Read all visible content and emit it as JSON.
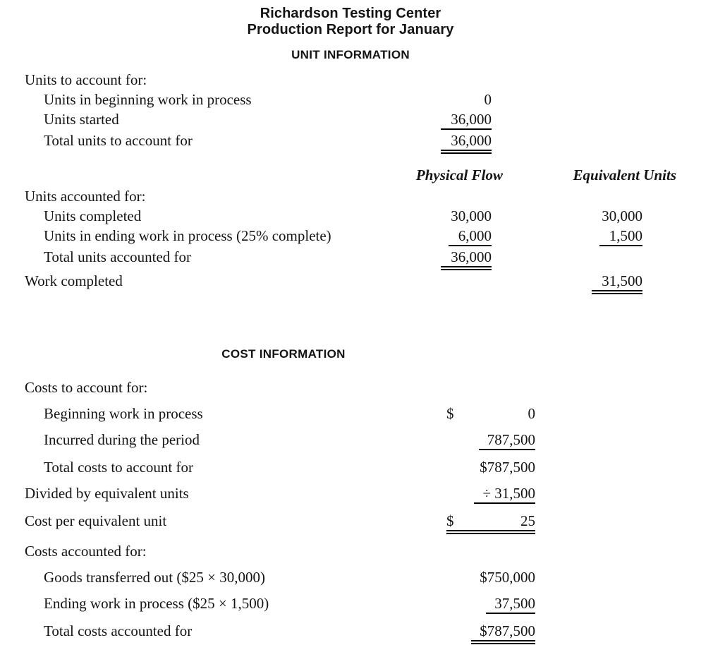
{
  "report": {
    "title": "Richardson Testing Center",
    "subtitle": "Production Report for January"
  },
  "unit_section": {
    "heading": "UNIT INFORMATION",
    "col_headers": {
      "physical_flow": "Physical Flow",
      "equivalent_units": "Equivalent Units"
    },
    "rows_top": [
      {
        "label": "Units to account for:",
        "indent": 0
      },
      {
        "label": "Units in beginning work in process",
        "indent": 1,
        "pf": "0"
      },
      {
        "label": "Units started",
        "indent": 1,
        "pf": "36,000",
        "pf_underline": "single"
      },
      {
        "label": "Total units to account for",
        "indent": 1,
        "pf": "36,000",
        "pf_underline": "double"
      }
    ],
    "rows_bottom": [
      {
        "label": "Units accounted for:",
        "indent": 0
      },
      {
        "label": "Units completed",
        "indent": 1,
        "pf": "30,000",
        "eu": "30,000"
      },
      {
        "label": "Units in ending work in process (25% complete)",
        "indent": 1,
        "pf": "6,000",
        "pf_underline": "single",
        "eu": "1,500",
        "eu_underline": "single"
      },
      {
        "label": "Total units accounted for",
        "indent": 1,
        "pf": "36,000",
        "pf_underline": "double"
      },
      {
        "label": "Work completed",
        "indent": 0,
        "eu": "31,500",
        "eu_underline": "double"
      }
    ]
  },
  "cost_section": {
    "heading": "COST INFORMATION",
    "rows": [
      {
        "label": "Costs to account for:",
        "indent": 0
      },
      {
        "label": "Beginning work in process",
        "indent": 1,
        "prefix": "$",
        "value": "0"
      },
      {
        "label": "Incurred during the period",
        "indent": 1,
        "value": "787,500",
        "underline": "single"
      },
      {
        "label": "Total costs to account for",
        "indent": 1,
        "value": "$787,500"
      },
      {
        "label": "Divided by equivalent units",
        "indent": 0,
        "value": "÷ 31,500",
        "underline": "single"
      },
      {
        "label": "Cost per equivalent unit",
        "indent": 0,
        "prefix": "$",
        "value": "25",
        "underline": "double"
      },
      {
        "label": "Costs accounted for:",
        "indent": 0
      },
      {
        "label": "Goods transferred out ($25 × 30,000)",
        "indent": 1,
        "value": "$750,000"
      },
      {
        "label": "Ending work in process ($25 × 1,500)",
        "indent": 1,
        "value": "37,500",
        "underline": "single"
      },
      {
        "label": "Total costs accounted for",
        "indent": 1,
        "value": "$787,500",
        "underline": "double"
      }
    ]
  }
}
